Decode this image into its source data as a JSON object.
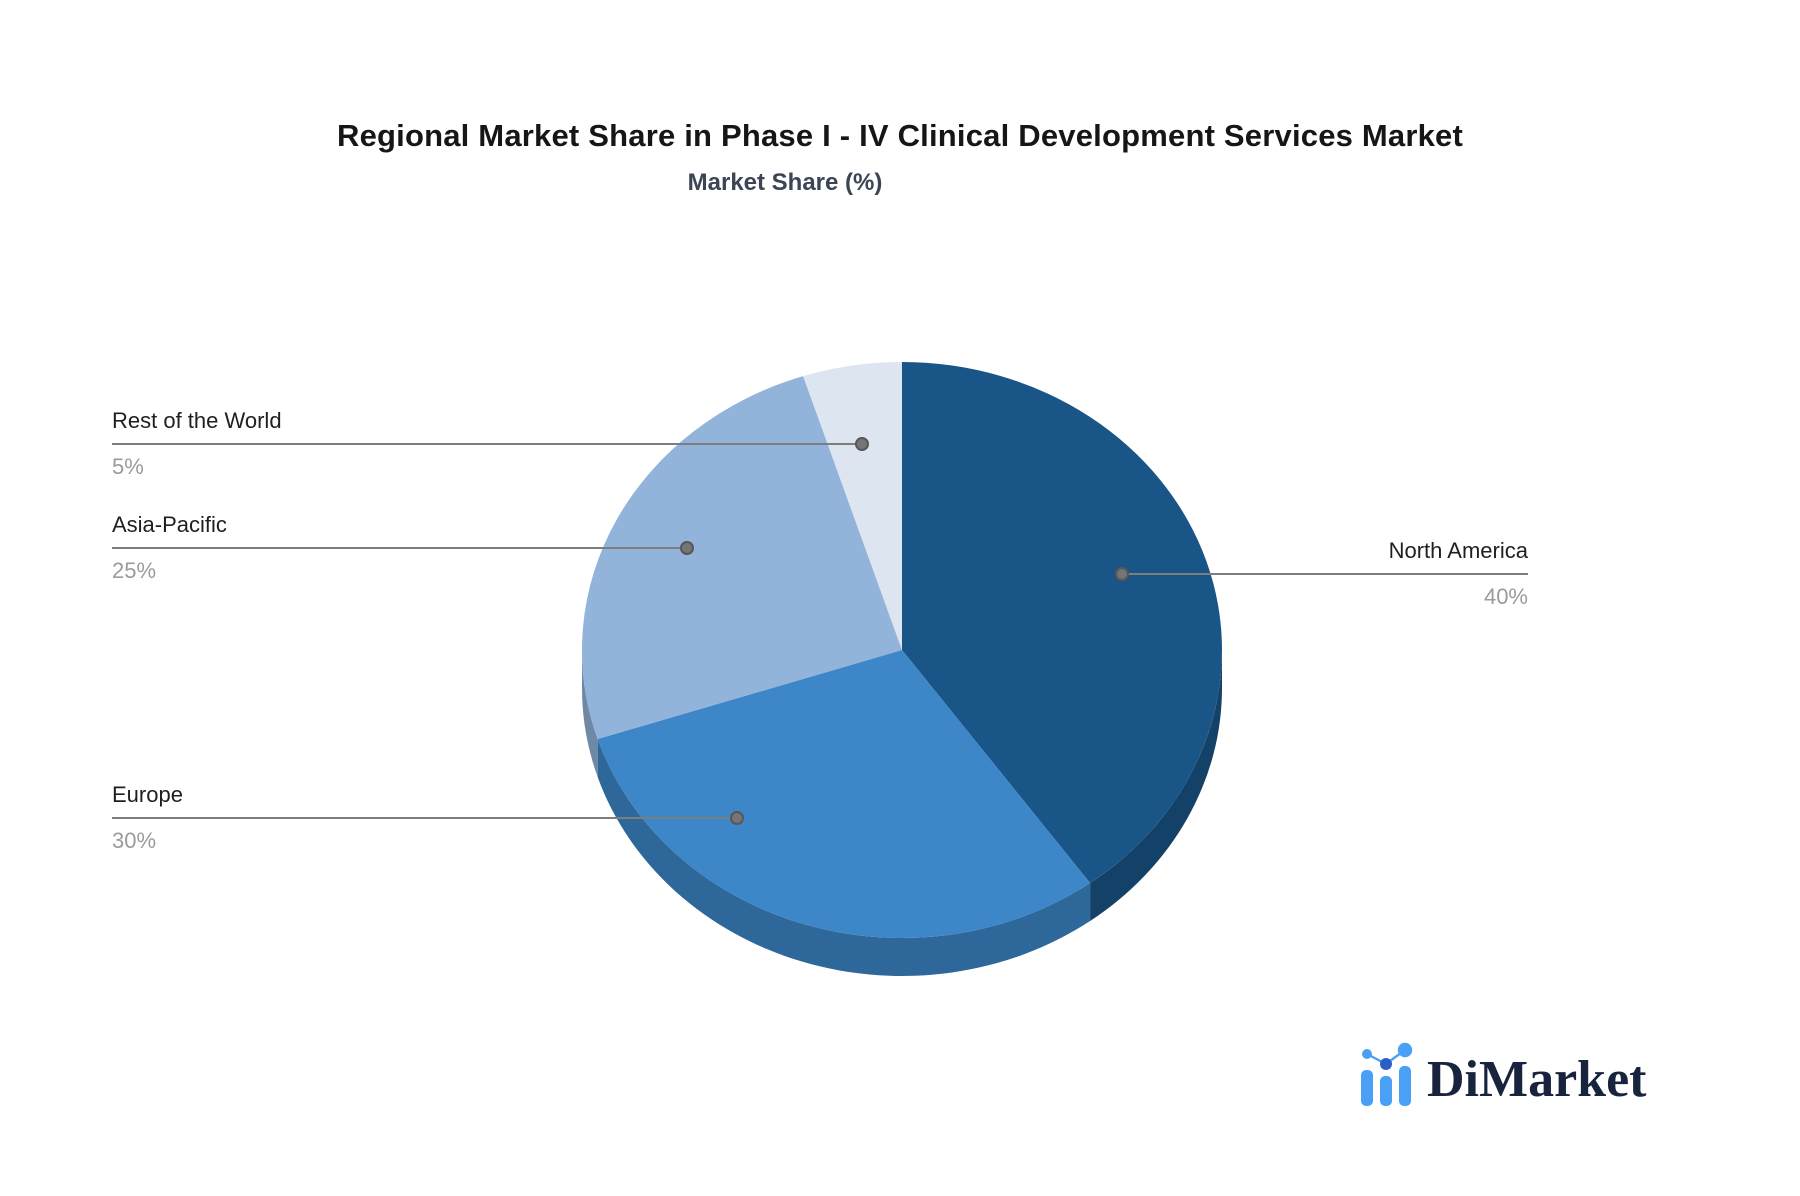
{
  "header": {
    "title": "Regional Market Share in Phase I - IV Clinical Development Services Market",
    "subtitle": "Market Share (%)"
  },
  "chart_data": {
    "type": "pie",
    "style": "3d",
    "title": "Regional Market Share in Phase I - IV Clinical Development Services Market",
    "subtitle": "Market Share (%)",
    "unit": "%",
    "start_angle_deg": 0,
    "direction": "clockwise",
    "legend": "none",
    "labels": "leader-lines",
    "slices": [
      {
        "label": "North America",
        "value": 40,
        "value_text": "40%",
        "color": "#1A5588"
      },
      {
        "label": "Europe",
        "value": 30,
        "value_text": "30%",
        "color": "#3D87C9"
      },
      {
        "label": "Asia-Pacific",
        "value": 25,
        "value_text": "25%",
        "color": "#92B3DA"
      },
      {
        "label": "Rest of the World",
        "value": 5,
        "value_text": "5%",
        "color": "#DDE5F0"
      }
    ],
    "leader_line_color": "#7d7d7d",
    "label_text_color": "#1f1f1f",
    "value_text_color": "#9b9b9b"
  },
  "logo": {
    "brand": "DiMarket",
    "icon": "bar-line-chart-icon",
    "text_color": "#18233d",
    "icon_color": "#4AA0F4",
    "icon_accent_color": "#2B5FC7"
  }
}
